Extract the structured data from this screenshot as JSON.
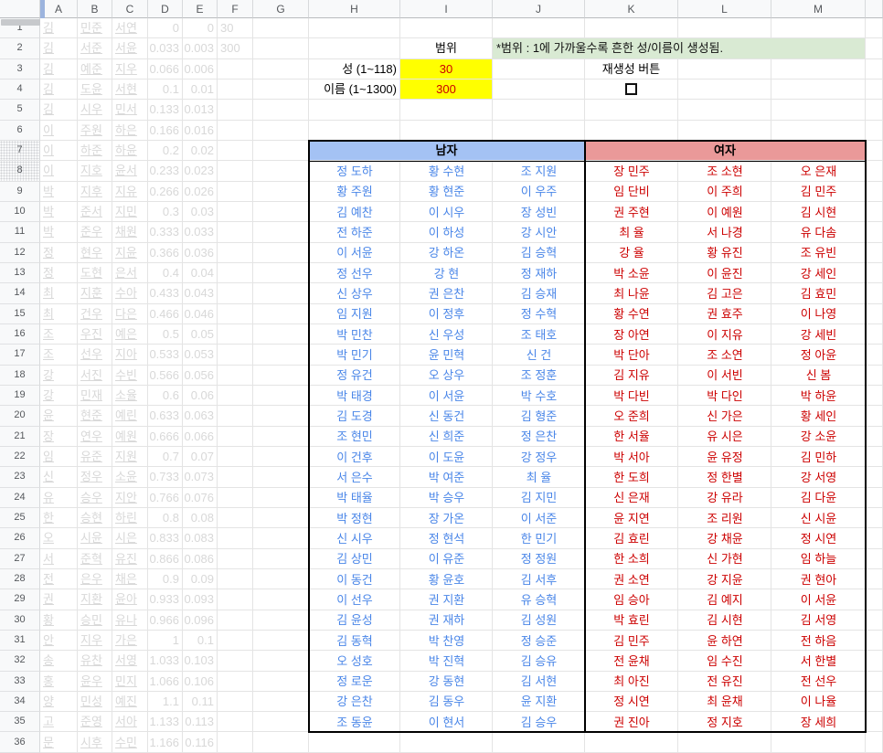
{
  "sheet": {
    "columns": [
      "A",
      "B",
      "C",
      "D",
      "E",
      "F",
      "G",
      "H",
      "I",
      "J",
      "K",
      "L",
      "M"
    ],
    "visible_rows": 36
  },
  "colors": {
    "male_text": "#4a86e8",
    "female_text": "#cc0000",
    "male_header_bg": "#a4c2f4",
    "female_header_bg": "#ea9999",
    "note_bg": "#d9ead3",
    "input_bg": "#ffff00",
    "input_text": "#cc0000",
    "faded_text": "#d8d8d8"
  },
  "generator": {
    "range_label": "범위",
    "range_note": "*범위 : 1에 가까울수록 흔한 성/이름이 생성됨.",
    "surname_label": "성 (1~118)",
    "surname_value": "30",
    "name_label": "이름 (1~1300)",
    "name_value": "300",
    "regenerate_label": "재생성 버튼",
    "checkbox_checked": false,
    "male": {
      "title": "남자",
      "names": [
        [
          "정 도하",
          "황 수현",
          "조 지원"
        ],
        [
          "황 주원",
          "황 현준",
          "이 우주"
        ],
        [
          "김 예찬",
          "이 시우",
          "장 성빈"
        ],
        [
          "전 하준",
          "이 하성",
          "강 시안"
        ],
        [
          "이 서윤",
          "강 하온",
          "김 승혁"
        ],
        [
          "정 선우",
          "강 현",
          "정 재하"
        ],
        [
          "신 상우",
          "권 은찬",
          "김 승재"
        ],
        [
          "임 지원",
          "이 정후",
          "정 수혁"
        ],
        [
          "박 민찬",
          "신 우성",
          "조 태호"
        ],
        [
          "박 민기",
          "윤 민혁",
          "신 건"
        ],
        [
          "정 유건",
          "오 상우",
          "조 정훈"
        ],
        [
          "박 태경",
          "이 서윤",
          "박 수호"
        ],
        [
          "김 도경",
          "신 동건",
          "김 형준"
        ],
        [
          "조 현민",
          "신 희준",
          "정 은찬"
        ],
        [
          "이 건후",
          "이 도윤",
          "강 정우"
        ],
        [
          "서 은수",
          "박 여준",
          "최 율"
        ],
        [
          "박 태율",
          "박 승우",
          "김 지민"
        ],
        [
          "박 정현",
          "장 가온",
          "이 서준"
        ],
        [
          "신 시우",
          "정 현석",
          "한 민기"
        ],
        [
          "김 상민",
          "이 유준",
          "정 정원"
        ],
        [
          "이 동건",
          "황 윤호",
          "김 서후"
        ],
        [
          "이 선우",
          "권 지환",
          "유 승혁"
        ],
        [
          "김 윤성",
          "권 재하",
          "김 성원"
        ],
        [
          "김 동혁",
          "박 찬영",
          "정 승준"
        ],
        [
          "오 성호",
          "박 진혁",
          "김 승유"
        ],
        [
          "정 로운",
          "강 동현",
          "김 서현"
        ],
        [
          "강 은찬",
          "김 동우",
          "윤 지환"
        ],
        [
          "조 동윤",
          "이 현서",
          "김 승우"
        ]
      ]
    },
    "female": {
      "title": "여자",
      "names": [
        [
          "장 민주",
          "조 소현",
          "오 은재"
        ],
        [
          "임 단비",
          "이 주희",
          "김 민주"
        ],
        [
          "권 주현",
          "이 예원",
          "김 시현"
        ],
        [
          "최 율",
          "서 나경",
          "유 다솜"
        ],
        [
          "강 율",
          "황 유진",
          "조 유빈"
        ],
        [
          "박 소윤",
          "이 윤진",
          "강 세인"
        ],
        [
          "최 나윤",
          "김 고은",
          "김 효민"
        ],
        [
          "황 수연",
          "권 효주",
          "이 나영"
        ],
        [
          "장 아연",
          "이 지유",
          "강 세빈"
        ],
        [
          "박 단아",
          "조 소연",
          "정 아윤"
        ],
        [
          "김 지유",
          "이 서빈",
          "신 봄"
        ],
        [
          "박 다빈",
          "박 다인",
          "박 하윤"
        ],
        [
          "오 준희",
          "신 가은",
          "황 세인"
        ],
        [
          "한 서율",
          "유 시은",
          "강 소윤"
        ],
        [
          "박 서아",
          "윤 유정",
          "김 민하"
        ],
        [
          "한 도희",
          "정 한별",
          "강 서영"
        ],
        [
          "신 은재",
          "강 유라",
          "김 다윤"
        ],
        [
          "윤 지연",
          "조 리원",
          "신 시윤"
        ],
        [
          "김 효린",
          "강 채윤",
          "정 시연"
        ],
        [
          "한 소희",
          "신 가현",
          "임 하늘"
        ],
        [
          "권 소연",
          "강 지윤",
          "권 현아"
        ],
        [
          "임 승아",
          "김 예지",
          "이 서윤"
        ],
        [
          "박 효린",
          "김 시현",
          "김 서영"
        ],
        [
          "김 민주",
          "윤 하연",
          "전 하음"
        ],
        [
          "전 윤채",
          "임 수진",
          "서 한별"
        ],
        [
          "최 아진",
          "전 유진",
          "전 선우"
        ],
        [
          "정 시연",
          "최 윤채",
          "이 나율"
        ],
        [
          "권 진아",
          "정 지호",
          "장 세희"
        ]
      ]
    }
  },
  "source_list": {
    "rows": [
      [
        "김",
        "민준",
        "서연",
        "0",
        "0",
        "30"
      ],
      [
        "김",
        "서준",
        "서윤",
        "0.033",
        "0.003",
        "300"
      ],
      [
        "김",
        "예준",
        "지우",
        "0.066",
        "0.006",
        ""
      ],
      [
        "김",
        "도윤",
        "서현",
        "0.1",
        "0.01",
        ""
      ],
      [
        "김",
        "시우",
        "민서",
        "0.133",
        "0.013",
        ""
      ],
      [
        "이",
        "주원",
        "하은",
        "0.166",
        "0.016",
        ""
      ],
      [
        "이",
        "하준",
        "하윤",
        "0.2",
        "0.02",
        ""
      ],
      [
        "이",
        "지호",
        "윤서",
        "0.233",
        "0.023",
        ""
      ],
      [
        "박",
        "지후",
        "지유",
        "0.266",
        "0.026",
        ""
      ],
      [
        "박",
        "준서",
        "지민",
        "0.3",
        "0.03",
        ""
      ],
      [
        "박",
        "준우",
        "채원",
        "0.333",
        "0.033",
        ""
      ],
      [
        "정",
        "현우",
        "지윤",
        "0.366",
        "0.036",
        ""
      ],
      [
        "정",
        "도현",
        "은서",
        "0.4",
        "0.04",
        ""
      ],
      [
        "최",
        "지훈",
        "수아",
        "0.433",
        "0.043",
        ""
      ],
      [
        "최",
        "건우",
        "다은",
        "0.466",
        "0.046",
        ""
      ],
      [
        "조",
        "우진",
        "예은",
        "0.5",
        "0.05",
        ""
      ],
      [
        "조",
        "선우",
        "지아",
        "0.533",
        "0.053",
        ""
      ],
      [
        "강",
        "서진",
        "수빈",
        "0.566",
        "0.056",
        ""
      ],
      [
        "강",
        "민재",
        "소율",
        "0.6",
        "0.06",
        ""
      ],
      [
        "윤",
        "현준",
        "예린",
        "0.633",
        "0.063",
        ""
      ],
      [
        "장",
        "연우",
        "예원",
        "0.666",
        "0.066",
        ""
      ],
      [
        "임",
        "유준",
        "지원",
        "0.7",
        "0.07",
        ""
      ],
      [
        "신",
        "정우",
        "소윤",
        "0.733",
        "0.073",
        ""
      ],
      [
        "유",
        "승우",
        "지안",
        "0.766",
        "0.076",
        ""
      ],
      [
        "한",
        "승현",
        "하린",
        "0.8",
        "0.08",
        ""
      ],
      [
        "오",
        "시윤",
        "시은",
        "0.833",
        "0.083",
        ""
      ],
      [
        "서",
        "준혁",
        "유진",
        "0.866",
        "0.086",
        ""
      ],
      [
        "전",
        "은우",
        "채은",
        "0.9",
        "0.09",
        ""
      ],
      [
        "권",
        "지환",
        "윤아",
        "0.933",
        "0.093",
        ""
      ],
      [
        "황",
        "승민",
        "유나",
        "0.966",
        "0.096",
        ""
      ],
      [
        "안",
        "지우",
        "가은",
        "1",
        "0.1",
        ""
      ],
      [
        "송",
        "유찬",
        "서영",
        "1.033",
        "0.103",
        ""
      ],
      [
        "홍",
        "윤우",
        "민지",
        "1.066",
        "0.106",
        ""
      ],
      [
        "양",
        "민성",
        "예진",
        "1.1",
        "0.11",
        ""
      ],
      [
        "고",
        "준영",
        "서아",
        "1.133",
        "0.113",
        ""
      ],
      [
        "문",
        "시후",
        "수민",
        "1.166",
        "0.116",
        ""
      ]
    ]
  }
}
